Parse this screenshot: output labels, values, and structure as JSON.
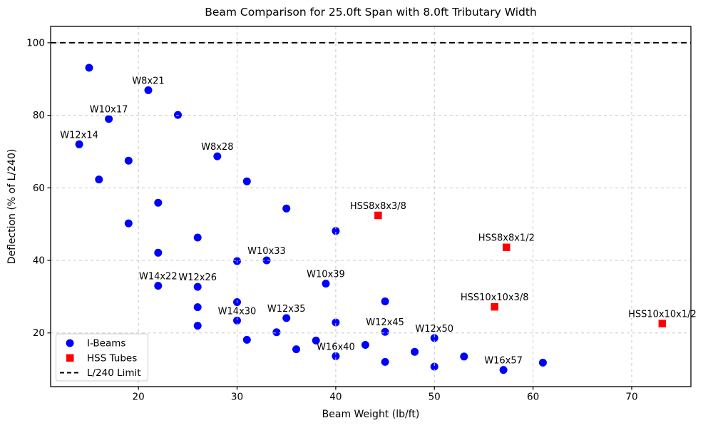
{
  "chart_data": {
    "type": "scatter",
    "title": "Beam Comparison for 25.0ft Span with 8.0ft Tributary Width",
    "xlabel": "Beam Weight (lb/ft)",
    "ylabel": "Deflection (% of L/240)",
    "xlim": [
      11.1,
      76.0
    ],
    "ylim": [
      5.2,
      104.5
    ],
    "xticks": [
      20,
      30,
      40,
      50,
      60,
      70
    ],
    "yticks": [
      20,
      40,
      60,
      80,
      100
    ],
    "grid": true,
    "grid_style": "dashed",
    "legend_position": "lower left",
    "colors": {
      "i_beams": "#0000ff",
      "hss_tubes": "#ff0000",
      "limit": "#000000",
      "grid": "#c9c9c9"
    },
    "limit_line": {
      "y": 100,
      "label": "L/240 Limit",
      "style": "dashed"
    },
    "series": [
      {
        "name": "I-Beams",
        "marker": "circle",
        "color_key": "i_beams",
        "points": [
          {
            "x": 15,
            "y": 93.1
          },
          {
            "x": 21,
            "y": 86.9,
            "label": "W8x21"
          },
          {
            "x": 24,
            "y": 80.1
          },
          {
            "x": 17,
            "y": 79.0,
            "label": "W10x17"
          },
          {
            "x": 14,
            "y": 72.0,
            "label": "W12x14"
          },
          {
            "x": 28,
            "y": 68.7,
            "label": "W8x28"
          },
          {
            "x": 19,
            "y": 67.5
          },
          {
            "x": 16,
            "y": 62.3
          },
          {
            "x": 31,
            "y": 61.8
          },
          {
            "x": 22,
            "y": 55.9
          },
          {
            "x": 35,
            "y": 54.3
          },
          {
            "x": 19,
            "y": 50.2
          },
          {
            "x": 40,
            "y": 48.1
          },
          {
            "x": 26,
            "y": 46.3
          },
          {
            "x": 22,
            "y": 42.1
          },
          {
            "x": 33,
            "y": 40.0,
            "label": "W10x33"
          },
          {
            "x": 30,
            "y": 39.8
          },
          {
            "x": 39,
            "y": 33.6,
            "label": "W10x39"
          },
          {
            "x": 22,
            "y": 33.0,
            "label": "W14x22"
          },
          {
            "x": 26,
            "y": 32.7,
            "label": "W12x26"
          },
          {
            "x": 30,
            "y": 28.5
          },
          {
            "x": 45,
            "y": 28.7
          },
          {
            "x": 26,
            "y": 27.1
          },
          {
            "x": 35,
            "y": 24.1,
            "label": "W12x35"
          },
          {
            "x": 30,
            "y": 23.4,
            "label": "W14x30"
          },
          {
            "x": 40,
            "y": 22.9
          },
          {
            "x": 26,
            "y": 22.0
          },
          {
            "x": 34,
            "y": 20.2
          },
          {
            "x": 45,
            "y": 20.3,
            "label": "W12x45"
          },
          {
            "x": 50,
            "y": 18.6,
            "label": "W12x50"
          },
          {
            "x": 31,
            "y": 18.1
          },
          {
            "x": 38,
            "y": 17.9
          },
          {
            "x": 43,
            "y": 16.7
          },
          {
            "x": 36,
            "y": 15.5
          },
          {
            "x": 48,
            "y": 14.8
          },
          {
            "x": 40,
            "y": 13.6,
            "label": "W16x40"
          },
          {
            "x": 53,
            "y": 13.5
          },
          {
            "x": 45,
            "y": 12.0
          },
          {
            "x": 61,
            "y": 11.8
          },
          {
            "x": 50,
            "y": 10.7
          },
          {
            "x": 57,
            "y": 9.8,
            "label": "W16x57"
          }
        ]
      },
      {
        "name": "HSS Tubes",
        "marker": "square",
        "color_key": "hss_tubes",
        "points": [
          {
            "x": 44.3,
            "y": 52.4,
            "label": "HSS8x8x3/8"
          },
          {
            "x": 57.3,
            "y": 43.6,
            "label": "HSS8x8x1/2"
          },
          {
            "x": 56.1,
            "y": 27.2,
            "label": "HSS10x10x3/8"
          },
          {
            "x": 73.1,
            "y": 22.6,
            "label": "HSS10x10x1/2"
          }
        ]
      }
    ]
  }
}
